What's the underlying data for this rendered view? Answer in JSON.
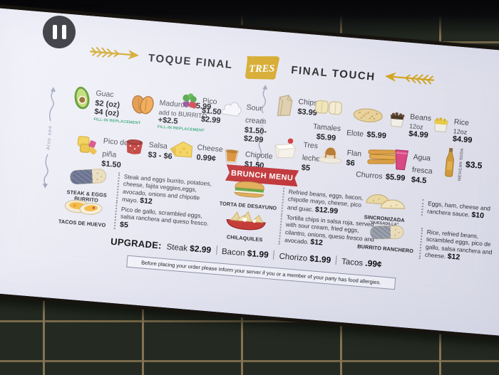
{
  "overlay": {
    "pause_icon": "pause-icon"
  },
  "header": {
    "title_left": "TOQUE FINAL",
    "logo_text": "TRES",
    "title_right": "FINAL TOUCH",
    "feather_icon": "feather-icon"
  },
  "side_labels": {
    "also_see": "Also see",
    "extras": "Extras"
  },
  "colors": {
    "gold": "#cfa21d",
    "banner_red": "#bc2a2e",
    "note_green": "#27a06a",
    "tile": "#242a21",
    "grout": "#847454",
    "board": "#e6e6f1"
  },
  "alacarte": {
    "items": [
      {
        "name": "Guac",
        "icon": "avocado-icon",
        "line1": "$2 (oz)",
        "line2": "$4 (oz)",
        "note": "FILL-IN REPLACEMENT"
      },
      {
        "name": "Maduros",
        "price": "$5.99",
        "icon": "maduros-icon",
        "sub": "add to BURRITO",
        "line1": "+$2.5",
        "note": "FILL-IN REPLACEMENT"
      },
      {
        "name": "Pico",
        "icon": "pico-icon",
        "line1": "$1.50",
        "line2": "$2.99"
      },
      {
        "name": "Sour cream",
        "icon": "sour-cream-icon",
        "line1": "$1.50-",
        "line2": "$2.99"
      },
      {
        "name": "Pico de piña",
        "icon": "pineapple-icon",
        "line1": "$1.50"
      },
      {
        "name": "Salsa",
        "icon": "salsa-bowl-icon",
        "line1": "$3 - $6"
      },
      {
        "name": "Cheese",
        "icon": "cheese-icon",
        "line1": "0.99¢"
      },
      {
        "name": "Chipotle",
        "icon": "chipotle-bowl-icon",
        "line1": "$1.50"
      },
      {
        "name": "Chips",
        "icon": "chips-bag-icon",
        "line1": "$3.99"
      },
      {
        "name": "Tamales",
        "icon": "tamales-icon",
        "line1": "$5.99"
      },
      {
        "name": "Elote",
        "price": "$5.99",
        "icon": "elote-icon"
      },
      {
        "name": "Beans",
        "sub": "12oz",
        "icon": "beans-cup-icon",
        "line1": "$4.99"
      },
      {
        "name": "Rice",
        "sub": "12oz",
        "icon": "rice-cup-icon",
        "line1": "$4.99"
      },
      {
        "name": "Tres leches",
        "icon": "tres-leches-icon",
        "line1": "$5"
      },
      {
        "name": "Flan",
        "icon": "flan-icon",
        "line1": "$6"
      },
      {
        "name": "Churros",
        "price": "$5.99",
        "icon": "churros-icon"
      },
      {
        "name": "Agua fresca",
        "icon": "agua-fresca-icon",
        "line1": "$4.5"
      },
      {
        "name": "MEXICAN SODA",
        "icon": "soda-bottle-icon",
        "line1": "$3.5"
      }
    ]
  },
  "brunch": {
    "banner": "BRUNCH MENU",
    "items": [
      {
        "label": "STEAK & EGGS BURRITO",
        "icon": "foil-burrito-icon",
        "desc": "Steak and eggs burrito, potatoes, cheese, fajita veggies,eggs, avocado, onions and chipotle mayo.",
        "price": "$12"
      },
      {
        "label": "TACOS DE HUEVO",
        "icon": "tacos-icon",
        "desc": "Pico de gallo, scrambled eggs, salsa ranchera and queso fresco.",
        "price": "$5"
      },
      {
        "label": "TORTA DE DESAYUNO",
        "icon": "torta-icon",
        "desc": "Refried beans, eggs, bacon, chipotle mayo, cheese, pico and guac.",
        "price": "$12.99"
      },
      {
        "label": "CHILAQUILES",
        "icon": "chilaquiles-icon",
        "desc": "Tortilla chips in salsa roja, served with sour cream, fried eggs, cilantro, onions, queso fresco and avocado.",
        "price": "$12"
      },
      {
        "label": "SINCRONIZADA",
        "label2": "\"QUESADILLA\"",
        "icon": "quesadilla-icon",
        "desc": "Eggs, ham, cheese and ranchera sauce.",
        "price": "$10"
      },
      {
        "label": "BURRITO RANCHERO",
        "icon": "foil-burrito-gray-icon",
        "desc": "Rice, refried beans, scrambled eggs, pico de gallo, salsa ranchera and cheese.",
        "price": "$12"
      }
    ]
  },
  "upgrade": {
    "label": "UPGRADE:",
    "options": [
      {
        "name": "Steak",
        "price": "$2.99"
      },
      {
        "name": "Bacon",
        "price": "$1.99"
      },
      {
        "name": "Chorizo",
        "price": "$1.99"
      },
      {
        "name": "Tacos",
        "price": ".99¢"
      }
    ]
  },
  "disclaimer": "Before placing your order please inform your server if you or a member of your party has food allergies."
}
